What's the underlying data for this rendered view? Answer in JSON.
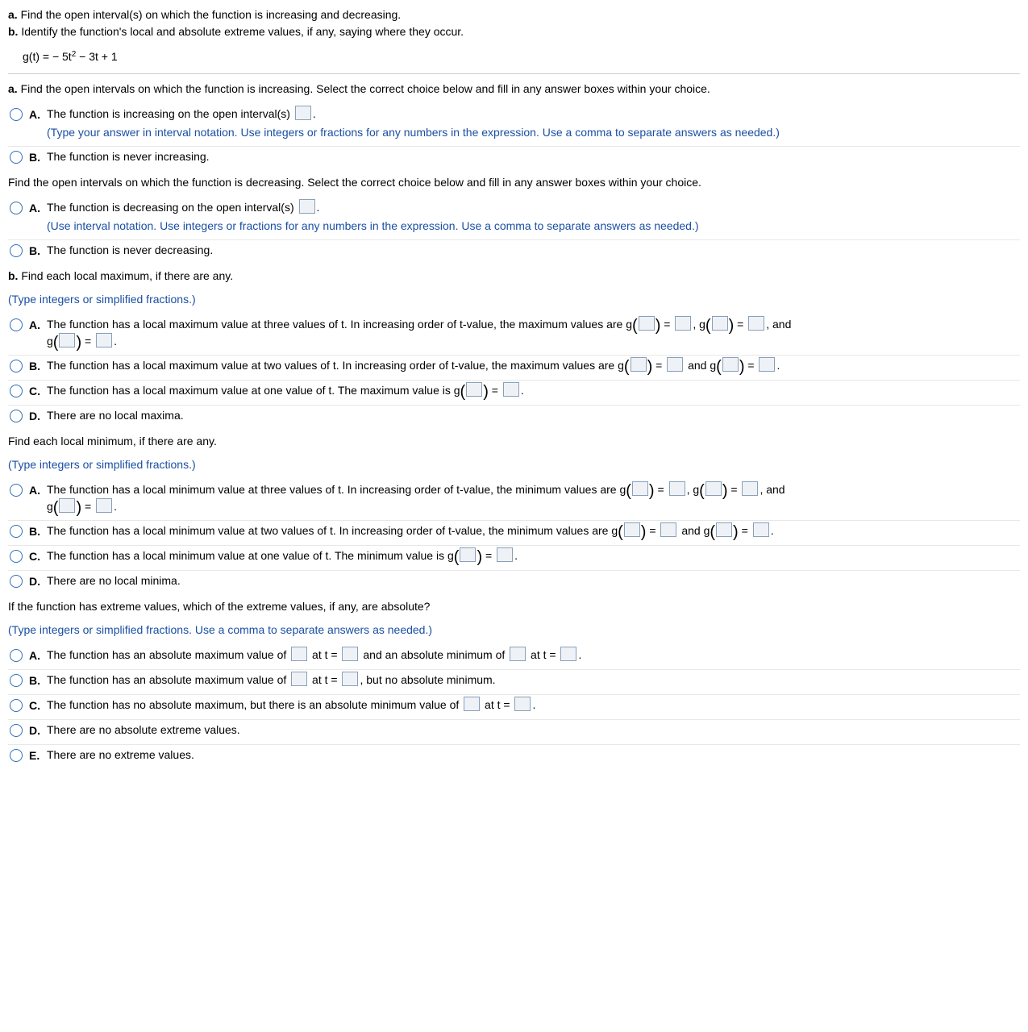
{
  "intro": {
    "a": "a.",
    "a_text": "Find the open interval(s) on which the function is increasing and decreasing.",
    "b": "b.",
    "b_text": "Identify the function's local and absolute extreme values, if any, saying where they occur."
  },
  "equation": {
    "lhs": "g(t) = − 5t",
    "exp": "2",
    "rest": " − 3t + 1"
  },
  "partA_inc": {
    "prompt_lead": "a.",
    "prompt": "Find the open intervals on which the function is increasing. Select the correct choice below and fill in any answer boxes within your choice.",
    "A": {
      "letter": "A.",
      "text": "The function is increasing on the open interval(s) ",
      "sub": "(Type your answer in interval notation. Use integers or fractions for any numbers in the expression. Use a comma to separate answers as needed.)"
    },
    "B": {
      "letter": "B.",
      "text": "The function is never increasing."
    }
  },
  "partA_dec": {
    "prompt": "Find the open intervals on which the function is decreasing. Select the correct choice below and fill in any answer boxes within your choice.",
    "A": {
      "letter": "A.",
      "text": "The function is decreasing on the open interval(s) ",
      "sub": "(Use interval notation. Use integers or fractions for any numbers in the expression. Use a comma to separate answers as needed.)"
    },
    "B": {
      "letter": "B.",
      "text": "The function is never decreasing."
    }
  },
  "partB_max": {
    "prompt_lead": "b.",
    "prompt": "Find each local maximum, if there are any.",
    "hint": "(Type integers or simplified fractions.)",
    "A": {
      "letter": "A.",
      "t1": "The function has a local maximum value at three values of t. In increasing order of t-value, the maximum values are g",
      "t_and": ", and"
    },
    "B": {
      "letter": "B.",
      "t1": "The function has a local maximum value at two values of t. In increasing order of t-value, the maximum values are g",
      "t_mid": " and g"
    },
    "C": {
      "letter": "C.",
      "t1": "The function has a local maximum value at one value of t. The maximum value is g"
    },
    "D": {
      "letter": "D.",
      "text": "There are no local maxima."
    }
  },
  "partB_min": {
    "prompt": "Find each local minimum, if there are any.",
    "hint": "(Type integers or simplified fractions.)",
    "A": {
      "letter": "A.",
      "t1": "The function has a local minimum value at three values of t. In increasing order of t-value, the minimum values are g",
      "t_and": ", and"
    },
    "B": {
      "letter": "B.",
      "t1": "The function has a local minimum value at two values of t. In increasing order of t-value, the minimum values are g",
      "t_mid": " and g"
    },
    "C": {
      "letter": "C.",
      "t1": "The function has a local minimum value at one value of t. The minimum value is g"
    },
    "D": {
      "letter": "D.",
      "text": "There are no local minima."
    }
  },
  "absolute": {
    "prompt": "If the function has extreme values, which of the extreme values, if any, are absolute?",
    "hint": "(Type integers or simplified fractions. Use a comma to separate answers as needed.)",
    "A": {
      "letter": "A.",
      "p1": "The function has an absolute maximum value of ",
      "p2": " at t = ",
      "p3": " and an absolute minimum of ",
      "p4": " at t = "
    },
    "B": {
      "letter": "B.",
      "p1": "The function has an absolute maximum value of ",
      "p2": " at t = ",
      "p3": ", but no absolute minimum."
    },
    "C": {
      "letter": "C.",
      "p1": "The function has no absolute maximum, but there is an absolute minimum value of ",
      "p2": " at t = "
    },
    "D": {
      "letter": "D.",
      "text": "There are no absolute extreme values."
    },
    "E": {
      "letter": "E.",
      "text": "There are no extreme values."
    }
  },
  "sym": {
    "eq": " = ",
    "comma_g": ", g",
    "period": "."
  }
}
